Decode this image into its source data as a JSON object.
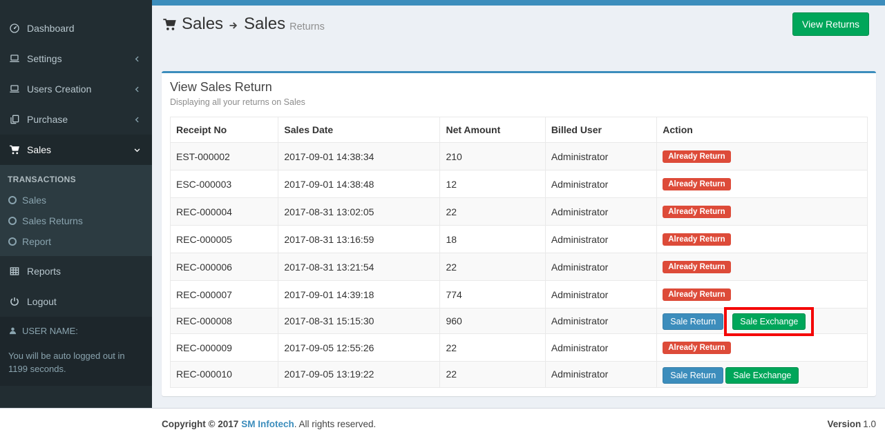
{
  "colors": {
    "topbar_blue": "#3c8dbc",
    "sidebar_dark": "#222d32",
    "sidebar_submenu": "#2c3b41",
    "sidebar_active": "#1e282c",
    "green_button": "#00a65a",
    "blue_button": "#3c8dbc",
    "red_badge": "#dd4b39",
    "highlight_box": "#f40606",
    "page_background": "#ecf0f5"
  },
  "sidebar": {
    "items": [
      {
        "label": "Dashboard",
        "icon": "dashboard-icon"
      },
      {
        "label": "Settings",
        "icon": "laptop-icon",
        "chevron": "left"
      },
      {
        "label": "Users Creation",
        "icon": "laptop-icon",
        "chevron": "left"
      },
      {
        "label": "Purchase",
        "icon": "copy-icon",
        "chevron": "left"
      },
      {
        "label": "Sales",
        "icon": "cart-icon",
        "chevron": "down",
        "active": true
      }
    ],
    "submenu_header": "TRANSACTIONS",
    "submenu": [
      {
        "label": "Sales"
      },
      {
        "label": "Sales Returns"
      },
      {
        "label": "Report"
      }
    ],
    "items_bottom": [
      {
        "label": "Reports",
        "icon": "table-icon"
      },
      {
        "label": "Logout",
        "icon": "power-icon"
      }
    ],
    "user_label": "USER NAME:",
    "auto_logout_note": "You will be auto logged out in 1199 seconds."
  },
  "header": {
    "breadcrumb_primary": "Sales",
    "breadcrumb_secondary": "Sales",
    "breadcrumb_small": "Returns",
    "view_returns_button": "View Returns"
  },
  "panel": {
    "title": "View Sales Return",
    "subtitle": "Displaying all your returns on Sales"
  },
  "table": {
    "columns": [
      "Receipt No",
      "Sales Date",
      "Net Amount",
      "Billed User",
      "Action"
    ],
    "badge_label": "Already Return",
    "button_labels": [
      "Sale Return",
      "Sale Exchange"
    ],
    "rows": [
      {
        "receipt_no": "EST-000002",
        "sales_date": "2017-09-01 14:38:34",
        "net_amount": "210",
        "billed_user": "Administrator",
        "action": "already_return"
      },
      {
        "receipt_no": "ESC-000003",
        "sales_date": "2017-09-01 14:38:48",
        "net_amount": "12",
        "billed_user": "Administrator",
        "action": "already_return"
      },
      {
        "receipt_no": "REC-000004",
        "sales_date": "2017-08-31 13:02:05",
        "net_amount": "22",
        "billed_user": "Administrator",
        "action": "already_return"
      },
      {
        "receipt_no": "REC-000005",
        "sales_date": "2017-08-31 13:16:59",
        "net_amount": "18",
        "billed_user": "Administrator",
        "action": "already_return"
      },
      {
        "receipt_no": "REC-000006",
        "sales_date": "2017-08-31 13:21:54",
        "net_amount": "22",
        "billed_user": "Administrator",
        "action": "already_return"
      },
      {
        "receipt_no": "REC-000007",
        "sales_date": "2017-09-01 14:39:18",
        "net_amount": "774",
        "billed_user": "Administrator",
        "action": "already_return"
      },
      {
        "receipt_no": "REC-000008",
        "sales_date": "2017-08-31 15:15:30",
        "net_amount": "960",
        "billed_user": "Administrator",
        "action": "buttons",
        "highlight": "sale_exchange"
      },
      {
        "receipt_no": "REC-000009",
        "sales_date": "2017-09-05 12:55:26",
        "net_amount": "22",
        "billed_user": "Administrator",
        "action": "already_return"
      },
      {
        "receipt_no": "REC-000010",
        "sales_date": "2017-09-05 13:19:22",
        "net_amount": "22",
        "billed_user": "Administrator",
        "action": "buttons"
      }
    ]
  },
  "footer": {
    "copyright_bold": "Copyright © 2017",
    "company_link": "SM Infotech",
    "copyright_rest": ". All rights reserved.",
    "version_label": "Version",
    "version_value": "1.0"
  }
}
